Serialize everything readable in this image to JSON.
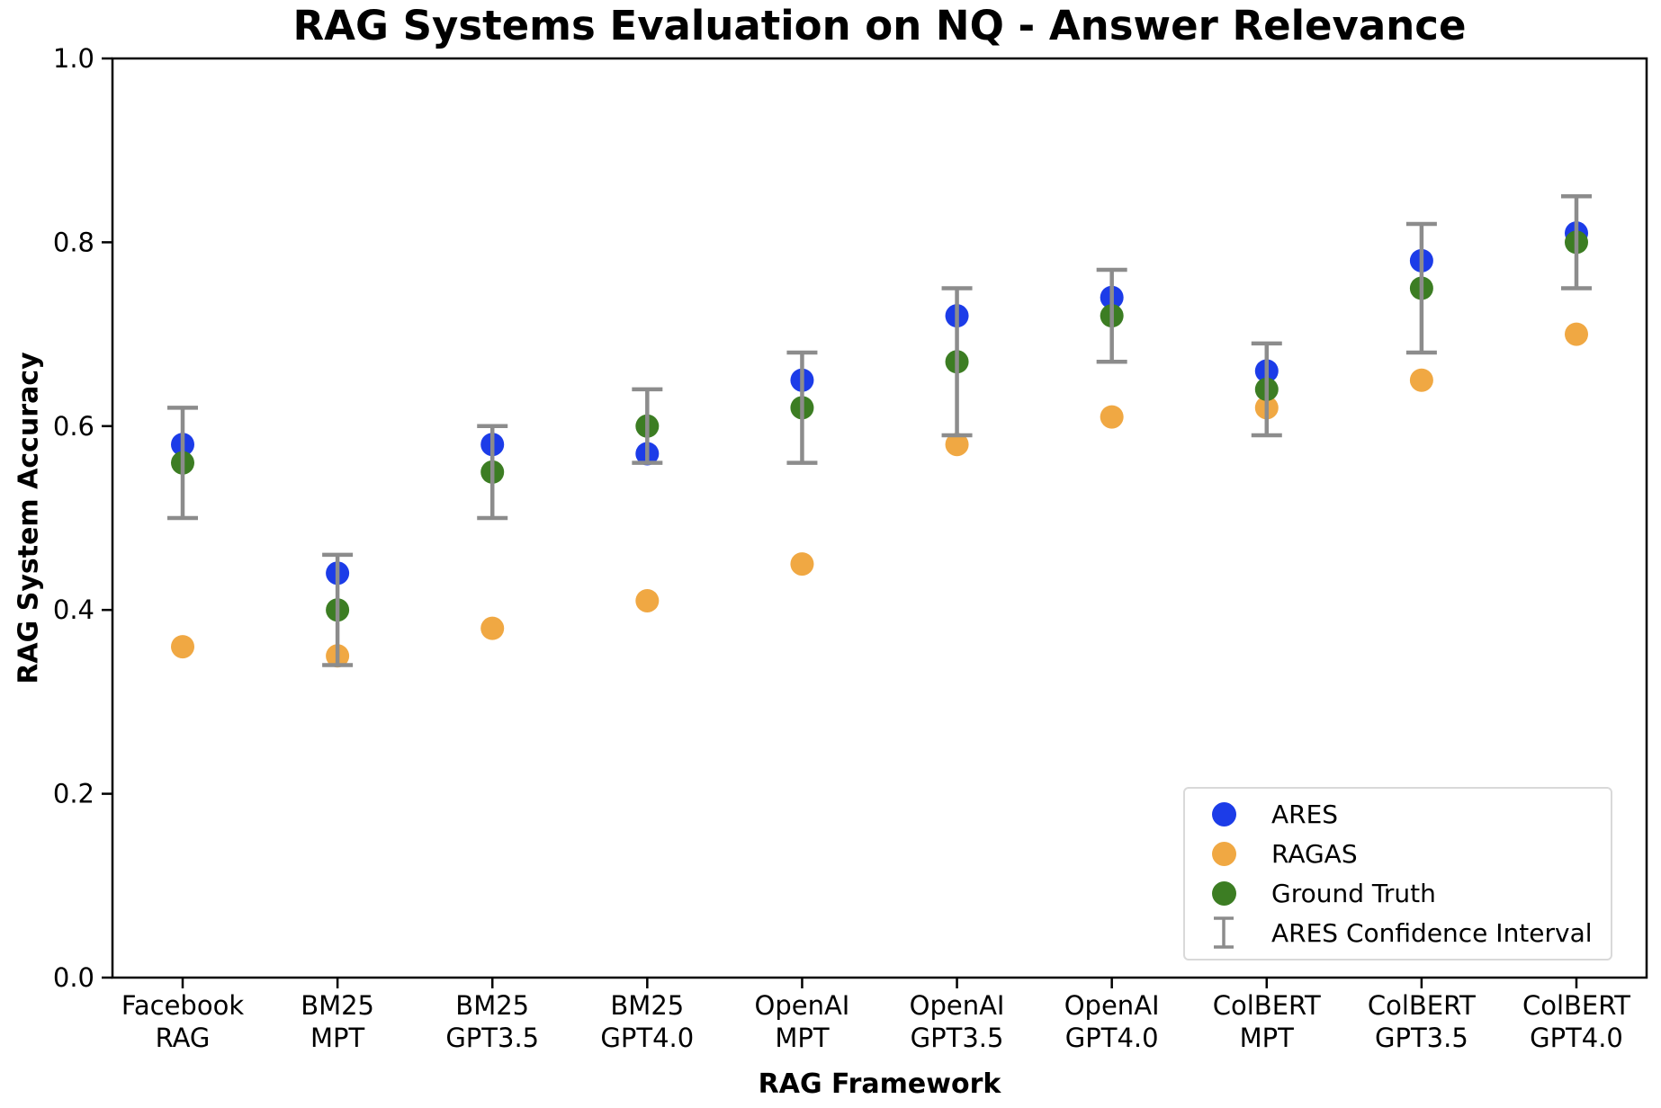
{
  "chart_data": {
    "type": "scatter",
    "title": "RAG Systems Evaluation on NQ - Answer Relevance",
    "xlabel": "RAG Framework",
    "ylabel": "RAG System Accuracy",
    "ylim": [
      0.0,
      1.0
    ],
    "ytick_labels": [
      "0.0",
      "0.2",
      "0.4",
      "0.6",
      "0.8",
      "1.0"
    ],
    "grid": false,
    "categories": [
      [
        "Facebook",
        "RAG"
      ],
      [
        "BM25",
        "MPT"
      ],
      [
        "BM25",
        "GPT3.5"
      ],
      [
        "BM25",
        "GPT4.0"
      ],
      [
        "OpenAI",
        "MPT"
      ],
      [
        "OpenAI",
        "GPT3.5"
      ],
      [
        "OpenAI",
        "GPT4.0"
      ],
      [
        "ColBERT",
        "MPT"
      ],
      [
        "ColBERT",
        "GPT3.5"
      ],
      [
        "ColBERT",
        "GPT4.0"
      ]
    ],
    "series": [
      {
        "name": "ARES",
        "color": "#1c3ce8",
        "values": [
          0.58,
          0.44,
          0.58,
          0.57,
          0.65,
          0.72,
          0.74,
          0.66,
          0.78,
          0.81
        ]
      },
      {
        "name": "RAGAS",
        "color": "#f0a843",
        "values": [
          0.36,
          0.35,
          0.38,
          0.41,
          0.45,
          0.58,
          0.61,
          0.62,
          0.65,
          0.7
        ]
      },
      {
        "name": "Ground Truth",
        "color": "#3c7d23",
        "values": [
          0.56,
          0.4,
          0.55,
          0.6,
          0.62,
          0.67,
          0.72,
          0.64,
          0.75,
          0.8
        ]
      }
    ],
    "error_bars": {
      "name": "ARES Confidence Interval",
      "color": "#8c8c8c",
      "low": [
        0.5,
        0.34,
        0.5,
        0.56,
        0.56,
        0.59,
        0.67,
        0.59,
        0.68,
        0.75
      ],
      "high": [
        0.62,
        0.46,
        0.6,
        0.64,
        0.68,
        0.75,
        0.77,
        0.69,
        0.82,
        0.85
      ]
    },
    "legend": {
      "position": "lower right",
      "entries": [
        {
          "label": "ARES",
          "marker": "dot",
          "color": "#1c3ce8"
        },
        {
          "label": "RAGAS",
          "marker": "dot",
          "color": "#f0a843"
        },
        {
          "label": "Ground Truth",
          "marker": "dot",
          "color": "#3c7d23"
        },
        {
          "label": "ARES Confidence Interval",
          "marker": "errorbar",
          "color": "#8c8c8c"
        }
      ]
    },
    "axis_color": "#000000"
  }
}
